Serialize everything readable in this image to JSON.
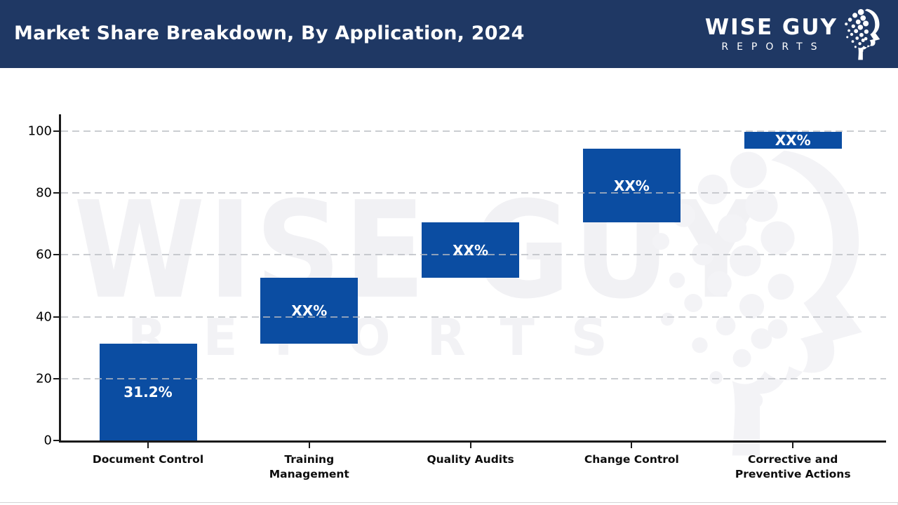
{
  "header": {
    "title": "Market Share Breakdown, By Application, 2024",
    "logo": {
      "line1": "WISE GUY",
      "line2": "REPORTS"
    }
  },
  "watermark": {
    "line1": "WISE GUY",
    "line2": "REPORTS"
  },
  "chart_data": {
    "type": "bar",
    "subtype": "waterfall",
    "title": "Market Share Breakdown, By Application, 2024",
    "categories": [
      "Document Control",
      "Training\nManagement",
      "Quality Audits",
      "Change Control",
      "Corrective and\nPreventive Actions"
    ],
    "bars": [
      {
        "category": "Document Control",
        "start": 0,
        "end": 31.2,
        "label": "31.2%"
      },
      {
        "category": "Training Management",
        "start": 31.2,
        "end": 52.5,
        "label": "XX%"
      },
      {
        "category": "Quality Audits",
        "start": 52.5,
        "end": 70.5,
        "label": "XX%"
      },
      {
        "category": "Change Control",
        "start": 70.5,
        "end": 94.3,
        "label": "XX%"
      },
      {
        "category": "Corrective and Preventive Actions",
        "start": 94.3,
        "end": 99.8,
        "label": "XX%"
      }
    ],
    "yticks": [
      0,
      20,
      40,
      60,
      80,
      100
    ],
    "ylim": [
      0,
      105
    ],
    "grid": true,
    "legend": false,
    "colors": {
      "bar": "#0b4da2",
      "bar_label": "#ffffff",
      "axis": "#1a1a1a",
      "gridline": "#c9cacd",
      "tick_label": "#000000"
    }
  },
  "colors": {
    "header_bg": "#1f3864",
    "page_bg": "#ffffff",
    "watermark": "#f1f1f4"
  }
}
